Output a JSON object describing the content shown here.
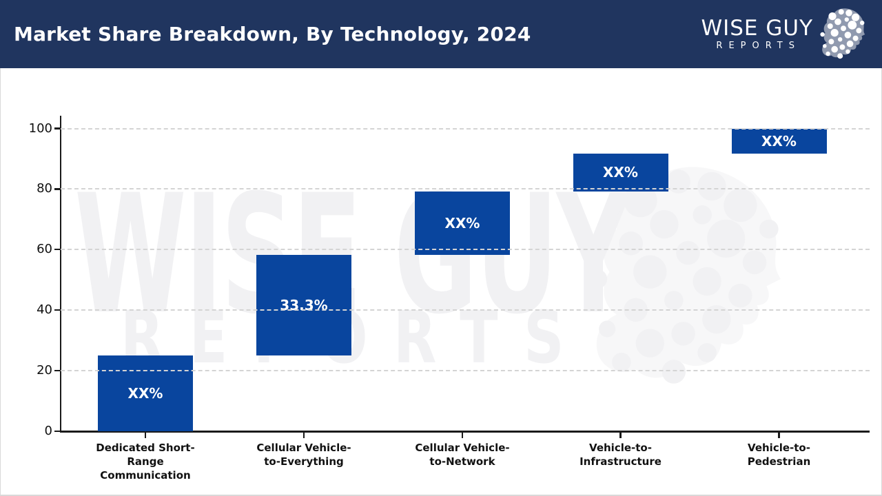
{
  "header": {
    "title": "Market Share Breakdown, By Technology, 2024",
    "logo_line1": "WISE GUY",
    "logo_line2": "REPORTS"
  },
  "watermark": {
    "line1": "WISE GUY",
    "line2": "REPORTS"
  },
  "chart_data": {
    "type": "bar",
    "subtype": "waterfall",
    "title": "Market Share Breakdown, By Technology, 2024",
    "categories": [
      "Dedicated Short-\nRange\nCommunication",
      "Cellular Vehicle-\nto-Everything",
      "Cellular Vehicle-\nto-Network",
      "Vehicle-to-\nInfrastructure",
      "Vehicle-to-\nPedestrian"
    ],
    "series": [
      {
        "name": "Market share (%)",
        "segments": [
          {
            "label": "XX%",
            "start": 0,
            "end": 25
          },
          {
            "label": "33.3%",
            "start": 25,
            "end": 58.3
          },
          {
            "label": "XX%",
            "start": 58.3,
            "end": 79.2
          },
          {
            "label": "XX%",
            "start": 79.2,
            "end": 91.7
          },
          {
            "label": "XX%",
            "start": 91.7,
            "end": 100
          }
        ]
      }
    ],
    "ylim": [
      0,
      100
    ],
    "yticks": [
      0,
      20,
      40,
      60,
      80,
      100
    ],
    "xlabel": "",
    "ylabel": "",
    "grid": "horizontal-dashed",
    "legend": "none",
    "bar_color": "#09459e",
    "bar_label_color": "#ffffff"
  },
  "colors": {
    "header_bg": "#20355f",
    "axis": "#1a1a1a",
    "grid": "#d4d4d4",
    "watermark": "#f1f1f3"
  }
}
